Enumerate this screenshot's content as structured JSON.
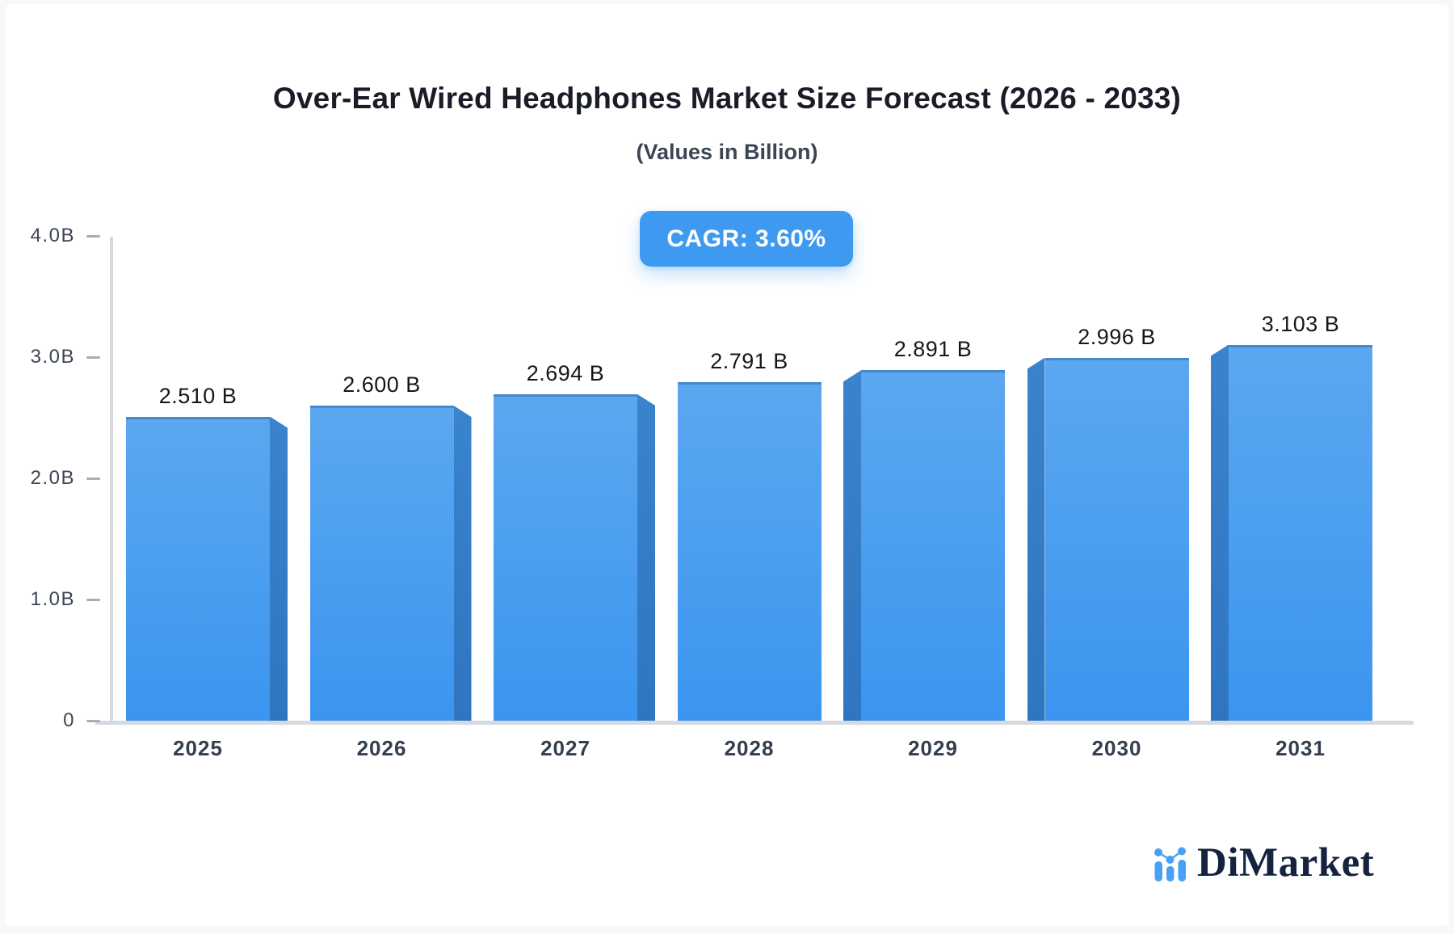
{
  "chart_data": {
    "type": "bar",
    "title": "Over-Ear Wired Headphones Market Size Forecast (2026 - 2033)",
    "subtitle": "(Values in Billion)",
    "cagr_label": "CAGR: 3.60%",
    "unit": "Billion",
    "categories": [
      "2025",
      "2026",
      "2027",
      "2028",
      "2029",
      "2030",
      "2031"
    ],
    "values": [
      2.51,
      2.6,
      2.694,
      2.791,
      2.891,
      2.996,
      3.103
    ],
    "value_labels": [
      "2.510 B",
      "2.600 B",
      "2.694 B",
      "2.791 B",
      "2.891 B",
      "2.996 B",
      "3.103 B"
    ],
    "ylim": [
      0,
      4
    ],
    "y_ticks": [
      {
        "value": 0,
        "label": "0"
      },
      {
        "value": 1,
        "label": "1.0B"
      },
      {
        "value": 2,
        "label": "2.0B"
      },
      {
        "value": 3,
        "label": "3.0B"
      },
      {
        "value": 4,
        "label": "4.0B"
      }
    ],
    "grid": false,
    "legend": false,
    "bar_style": "3d-perspective-blue"
  },
  "logo": {
    "brand": "DiMarket",
    "icon": "mini-bar-chart-with-trend-dots"
  },
  "colors": {
    "badge_bg": "#3e9af0",
    "bar_face_top": "#5ba7f0",
    "bar_face_bottom": "#3b95ef",
    "bar_side": "#3278c3",
    "axis_line": "#d6d9de",
    "logo_icon": "#4aa0f6",
    "logo_text": "#14233e"
  }
}
